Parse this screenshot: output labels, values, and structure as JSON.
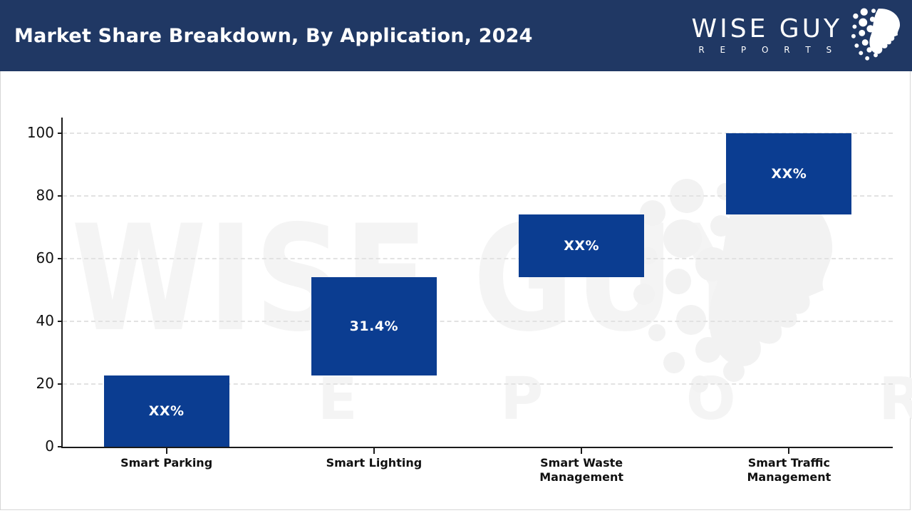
{
  "header": {
    "title": "Market Share Breakdown, By Application, 2024",
    "logo_line1": "WISE GUY",
    "logo_line2": "R E P O R T S"
  },
  "watermark": {
    "line1": "WISE GUY",
    "line2": "R E P O R T S"
  },
  "chart_data": {
    "type": "bar",
    "subtype": "waterfall",
    "title": "Market Share Breakdown, By Application, 2024",
    "categories": [
      "Smart Parking",
      "Smart Lighting",
      "Smart Waste Management",
      "Smart Traffic Management"
    ],
    "category_lines": [
      [
        "Smart Parking"
      ],
      [
        "Smart Lighting"
      ],
      [
        "Smart Waste",
        "Management"
      ],
      [
        "Smart Traffic",
        "Management"
      ]
    ],
    "series": [
      {
        "name": "Market Share (%)",
        "segments": [
          {
            "category": "Smart Parking",
            "start": 0,
            "end": 22.7,
            "value": 22.7,
            "label": "XX%"
          },
          {
            "category": "Smart Lighting",
            "start": 22.7,
            "end": 54.1,
            "value": 31.4,
            "label": "31.4%"
          },
          {
            "category": "Smart Waste Management",
            "start": 54.1,
            "end": 74.1,
            "value": 20.0,
            "label": "XX%"
          },
          {
            "category": "Smart Traffic Management",
            "start": 74.1,
            "end": 100,
            "value": 25.9,
            "label": "XX%"
          }
        ]
      }
    ],
    "ylim": [
      0,
      100
    ],
    "yticks": [
      0,
      20,
      40,
      60,
      80,
      100
    ],
    "xlabel": "",
    "ylabel": "",
    "grid": "horizontal-dashed",
    "legend": "none"
  },
  "colors": {
    "header_bg": "#203864",
    "bar": "#0b3d91",
    "bar_label": "#ffffff",
    "axis": "#1a1a1a",
    "gridline": "#e2e2e2",
    "watermark": "#f4f4f4"
  }
}
